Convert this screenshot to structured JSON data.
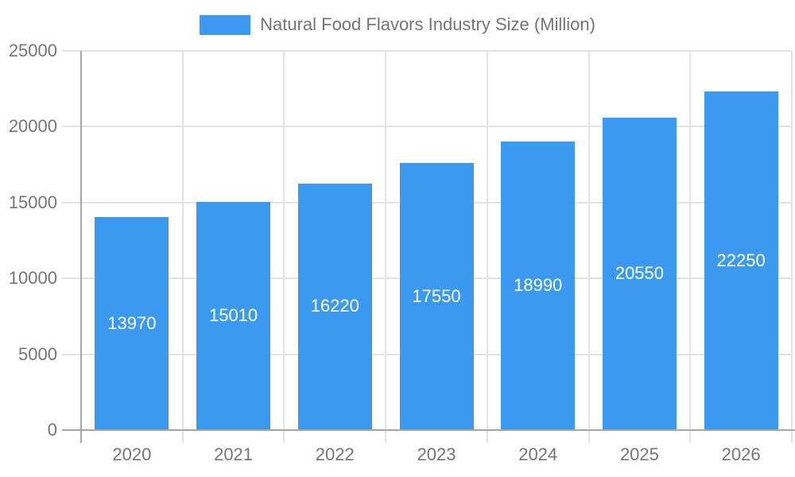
{
  "legend": {
    "label": "Natural Food Flavors Industry Size (Million)"
  },
  "colors": {
    "bar": "#3B99EF",
    "axis": "#A6A6A6",
    "grid": "#E3E3E3",
    "text": "#757575",
    "bar_label": "#FFFFFF",
    "background": "#FFFFFF"
  },
  "chart_data": {
    "type": "bar",
    "title": "Natural Food Flavors Industry Size (Million)",
    "categories": [
      "2020",
      "2021",
      "2022",
      "2023",
      "2024",
      "2025",
      "2026"
    ],
    "values": [
      13970,
      15010,
      16220,
      17550,
      18990,
      20550,
      22250
    ],
    "series": [
      {
        "name": "Natural Food Flavors Industry Size (Million)",
        "values": [
          13970,
          15010,
          16220,
          17550,
          18990,
          20550,
          22250
        ]
      }
    ],
    "xlabel": "",
    "ylabel": "",
    "ylim": [
      0,
      25000
    ],
    "yticks": [
      0,
      5000,
      10000,
      15000,
      20000,
      25000
    ],
    "grid": true,
    "legend_position": "top-center",
    "bar_labels_shown": true,
    "bar_label_position": "center-inside"
  }
}
